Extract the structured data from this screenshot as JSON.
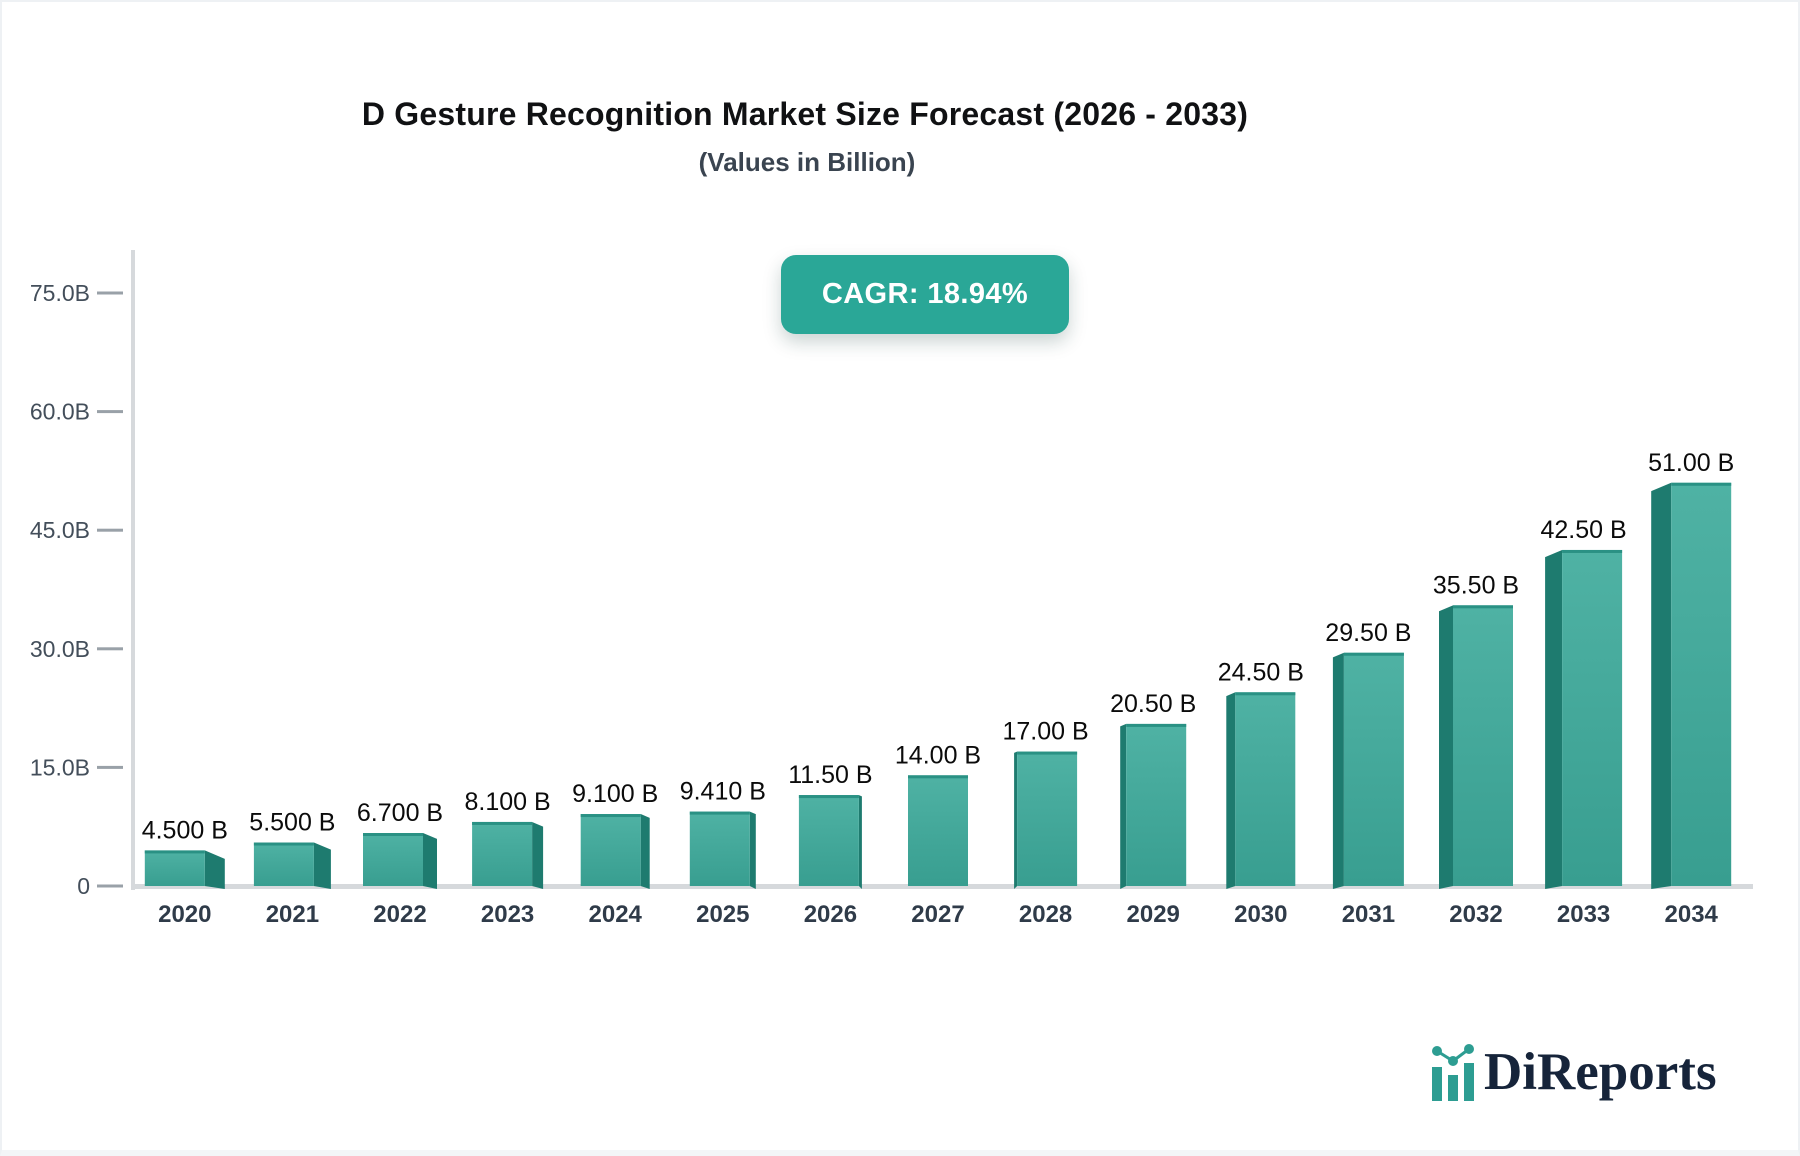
{
  "header": {
    "title": "D Gesture Recognition Market Size Forecast (2026 - 2033)",
    "subtitle": "(Values in Billion)",
    "cagr_badge": "CAGR: 18.94%"
  },
  "chart_data": {
    "type": "bar",
    "title": "D Gesture Recognition Market Size Forecast (2026 - 2033)",
    "subtitle": "(Values in Billion)",
    "annotation": "CAGR: 18.94%",
    "categories": [
      "2020",
      "2021",
      "2022",
      "2023",
      "2024",
      "2025",
      "2026",
      "2027",
      "2028",
      "2029",
      "2030",
      "2031",
      "2032",
      "2033",
      "2034"
    ],
    "values": [
      4.5,
      5.5,
      6.7,
      8.1,
      9.1,
      9.41,
      11.5,
      14.0,
      17.0,
      20.5,
      24.5,
      29.5,
      35.5,
      42.5,
      51.0
    ],
    "value_labels": [
      "4.500 B",
      "5.500 B",
      "6.700 B",
      "8.100 B",
      "9.100 B",
      "9.410 B",
      "11.50 B",
      "14.00 B",
      "17.00 B",
      "20.50 B",
      "24.50 B",
      "29.50 B",
      "35.50 B",
      "42.50 B",
      "51.00 B"
    ],
    "xlabel": "",
    "ylabel": "",
    "ylim": [
      0,
      75
    ],
    "y_tick_values": [
      0,
      15,
      30,
      45,
      60,
      75
    ],
    "y_tick_labels": [
      "0",
      "15.0B",
      "30.0B",
      "45.0B",
      "60.0B",
      "75.0B"
    ],
    "grid": false,
    "legend": "none",
    "unit": "Billion"
  },
  "colors": {
    "bar_front_top": "#4fb2a4",
    "bar_front_bottom": "#389e90",
    "bar_side": "#1e7b6f",
    "bar_top_edge": "#2a9184",
    "badge_bg": "#2aa797",
    "badge_text": "#ffffff",
    "axis_line": "#d6d9dc",
    "tick_dash": "#99a1a8",
    "y_label": "#434e5a",
    "x_label": "#2f3b49",
    "value_label": "#0b0b0b",
    "title": "#101113",
    "subtitle": "#3a4450",
    "logo_navy": "#16243a",
    "logo_teal": "#2d9d92"
  },
  "branding": {
    "logo_text": "DiReports",
    "logo_icon": "mini-bar-line-chart-icon"
  }
}
